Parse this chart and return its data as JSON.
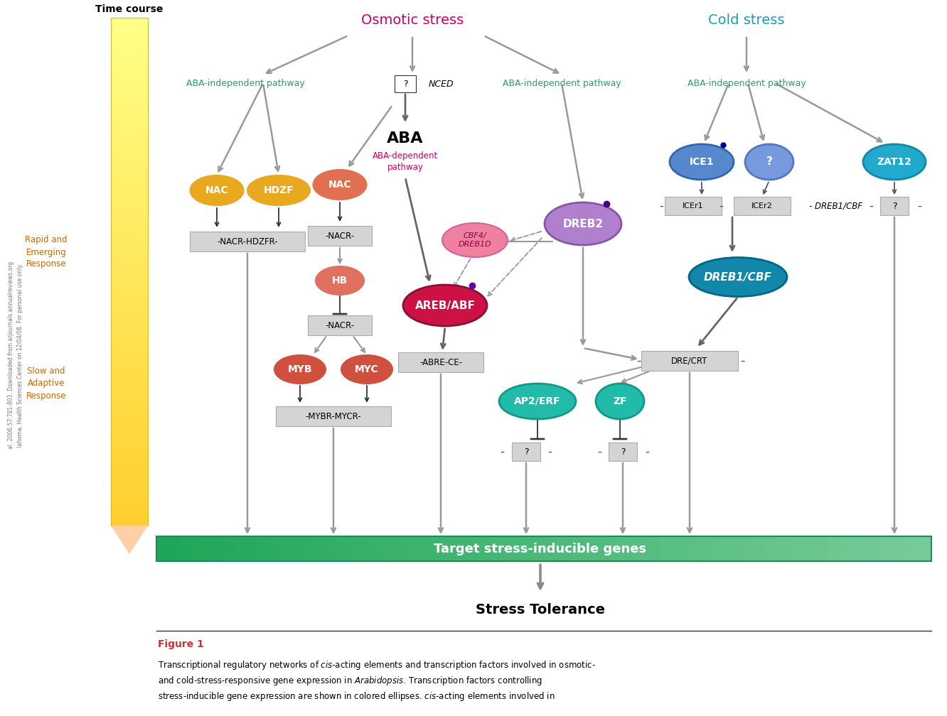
{
  "bg_color": "#ffffff",
  "osmotic_stress_color": "#cc0066",
  "cold_stress_color": "#2299bb",
  "aba_independent_color": "#339966",
  "fig_label_color": "#cc3333",
  "figure_caption_bold": "Figure 1",
  "time_course_label": "Time course",
  "rapid_emerging": "Rapid and\nEmerging\nResponse",
  "slow_adaptive": "Slow and\nAdaptive\nResponse",
  "side_text_line1": "al. 2006.57:781-803. Downloaded from arjournals.annualreviews.org",
  "side_text_line2": "lahoma, Health Sciences Center on 12/04/08. For personal use only.",
  "cap_line1": "Transcriptional regulatory networks of cis-acting elements and transcription factors involved in osmotic-",
  "cap_line2": "and cold-stress-responsive gene expression in Arabidopsis. Transcription factors controlling",
  "cap_line3": "stress-inducible gene expression are shown in colored ellipses. cis-acting elements involved in"
}
